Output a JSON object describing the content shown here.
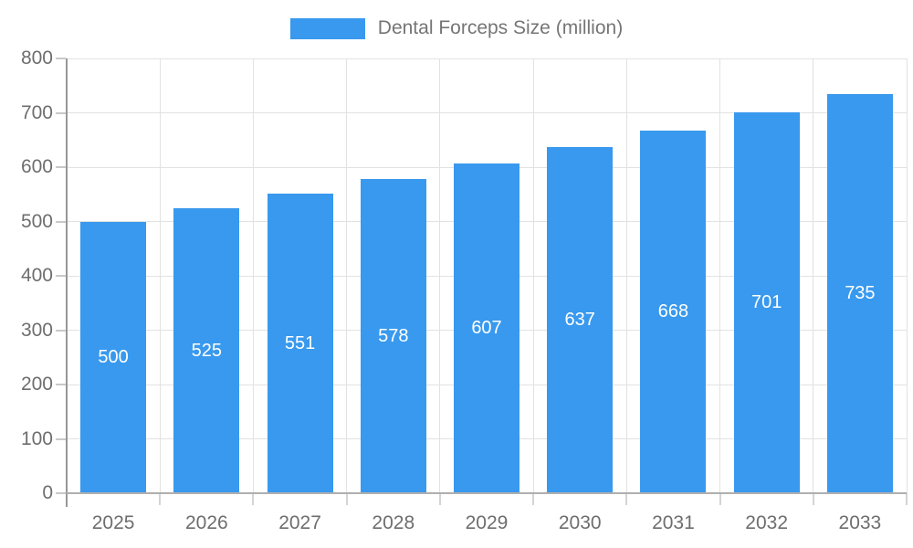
{
  "chart_data": {
    "type": "bar",
    "title": "Dental Forceps Size (million)",
    "categories": [
      "2025",
      "2026",
      "2027",
      "2028",
      "2029",
      "2030",
      "2031",
      "2032",
      "2033"
    ],
    "values": [
      500,
      525,
      551,
      578,
      607,
      637,
      668,
      701,
      735
    ],
    "xlabel": "",
    "ylabel": "",
    "ylim": [
      0,
      800
    ],
    "ytick_step": 100,
    "ytick_labels": [
      "0",
      "100",
      "200",
      "300",
      "400",
      "500",
      "600",
      "700",
      "800"
    ],
    "grid": true,
    "legend_position": "top-center",
    "bar_color": "#3899EE",
    "bar_label_color": "#FFFFFF"
  },
  "colors": {
    "background": "#FFFFFF",
    "accent_blue": "#3899EE",
    "gridline": "#E2E2E2",
    "y_axis_line": "#979797",
    "x_axis_line": "#AFAFAF",
    "tick": "#C9C9C9",
    "axis_text": "#6E6E6E",
    "legend_text": "#757575"
  },
  "legend": {
    "label": "Dental Forceps Size (million)"
  }
}
